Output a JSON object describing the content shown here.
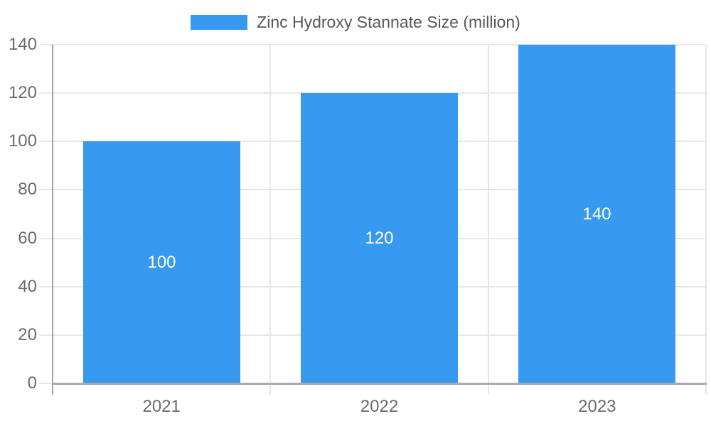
{
  "chart_data": {
    "type": "bar",
    "title": "",
    "series_name": "Zinc Hydroxy Stannate Size (million)",
    "categories": [
      "2021",
      "2022",
      "2023"
    ],
    "values": [
      100,
      120,
      140
    ],
    "data_labels": [
      "100",
      "120",
      "140"
    ],
    "xlabel": "",
    "ylabel": "",
    "ylim": [
      0,
      140
    ],
    "yticks": [
      0,
      20,
      40,
      60,
      80,
      100,
      120,
      140
    ],
    "grid": true,
    "legend_position": "top-center",
    "colors": {
      "bar": "#3899F0",
      "gridline": "#E7E7E7",
      "y_axis_line": "#A3A3A3",
      "x_axis_line": "#ABABAB",
      "tick_label": "#6B6B6B",
      "legend_text": "#58585B",
      "data_label": "#FFFFFF",
      "background": "#FFFFFF"
    }
  }
}
